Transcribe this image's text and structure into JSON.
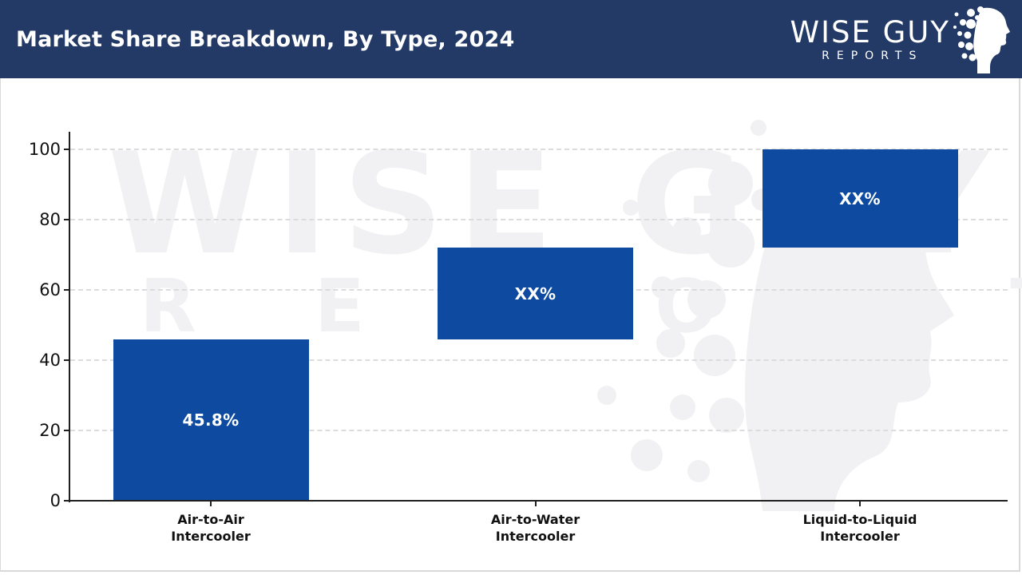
{
  "header": {
    "title": "Market Share Breakdown, By Type, 2024",
    "logo": {
      "line1": "WISE GUY",
      "line2": "REPORTS"
    }
  },
  "watermark": {
    "line1": "WISE GUY",
    "line2": "REPORTS"
  },
  "colors": {
    "header_bg": "#233a66",
    "bar": "#0d4aa0",
    "bar_label_text": "#ffffff",
    "grid": "#dcdcdc",
    "axis": "#1f1f1f",
    "watermark": "#f1f1f3"
  },
  "chart_data": {
    "type": "bar",
    "subtype": "floating-segment-breakdown",
    "title": "Market Share Breakdown, By Type, 2024",
    "xlabel": "",
    "ylabel": "",
    "ylim": [
      0,
      105
    ],
    "yticks": [
      0,
      20,
      40,
      60,
      80,
      100
    ],
    "grid": "horizontal-dashed",
    "legend": "none",
    "bar_color": "#0d4aa0",
    "categories": [
      {
        "line1": "Air-to-Air",
        "line2": "Intercooler"
      },
      {
        "line1": "Air-to-Water",
        "line2": "Intercooler"
      },
      {
        "line1": "Liquid-to-Liquid",
        "line2": "Intercooler"
      }
    ],
    "segments": [
      {
        "category": "Air-to-Air Intercooler",
        "start": 0,
        "end": 45.8,
        "value_label": "45.8%"
      },
      {
        "category": "Air-to-Water Intercooler",
        "start": 45.8,
        "end": 72,
        "value_label": "XX%"
      },
      {
        "category": "Liquid-to-Liquid Intercooler",
        "start": 72,
        "end": 100,
        "value_label": "XX%"
      }
    ]
  }
}
